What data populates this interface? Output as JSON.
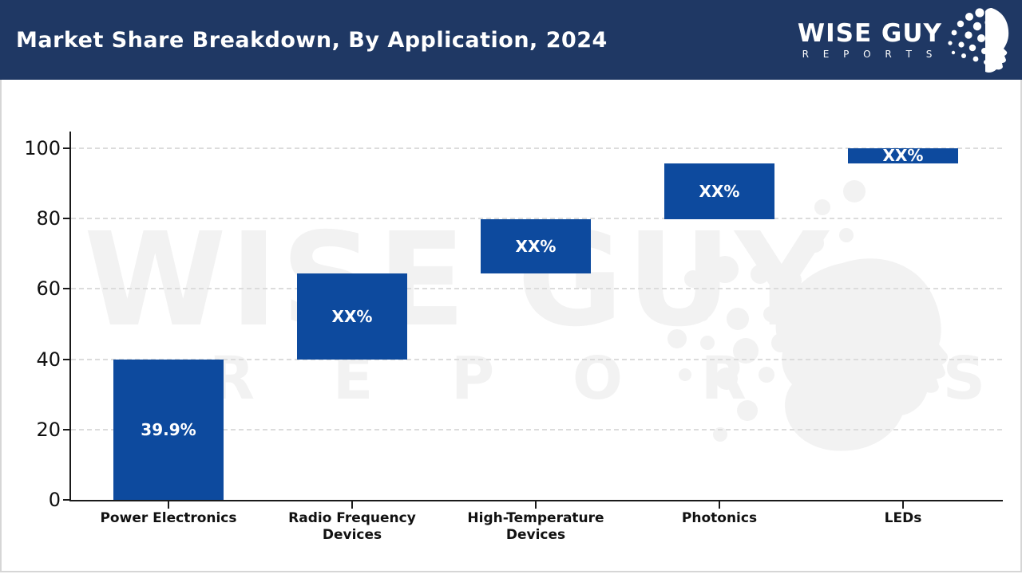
{
  "header": {
    "title": "Market Share Breakdown, By Application, 2024",
    "brand": {
      "name": "WISE GUY",
      "sub": "R E P O R T S"
    }
  },
  "watermark": {
    "name": "WISE GUY",
    "sub": "R E P O R T S"
  },
  "colors": {
    "header_background": "#1f3864",
    "bar": "#0d4a9e",
    "bar_label": "#ffffff",
    "axis": "#1a1a1a",
    "gridline": "#dcdcdc",
    "watermark": "#f2f2f2"
  },
  "chart_data": {
    "type": "bar",
    "subtype": "waterfall",
    "title": "Market Share Breakdown, By Application, 2024",
    "xlabel": "",
    "ylabel": "",
    "ylim": [
      0,
      100
    ],
    "yticks": [
      0,
      20,
      40,
      60,
      80,
      100
    ],
    "grid": "horizontal-dashed",
    "legend": "none",
    "categories": [
      "Power Electronics",
      "Radio Frequency Devices",
      "High-Temperature Devices",
      "Photonics",
      "LEDs"
    ],
    "segments": [
      {
        "category": "Power Electronics",
        "label_lines": [
          "Power Electronics"
        ],
        "start": 0,
        "end": 39.9,
        "value_label": "39.9%"
      },
      {
        "category": "Radio Frequency Devices",
        "label_lines": [
          "Radio Frequency",
          "Devices"
        ],
        "start": 39.9,
        "end": 64.5,
        "value_label": "XX%"
      },
      {
        "category": "High-Temperature Devices",
        "label_lines": [
          "High-Temperature",
          "Devices"
        ],
        "start": 64.5,
        "end": 79.9,
        "value_label": "XX%"
      },
      {
        "category": "Photonics",
        "label_lines": [
          "Photonics"
        ],
        "start": 79.9,
        "end": 95.8,
        "value_label": "XX%"
      },
      {
        "category": "LEDs",
        "label_lines": [
          "LEDs"
        ],
        "start": 95.8,
        "end": 100,
        "value_label": "XX%"
      }
    ]
  }
}
